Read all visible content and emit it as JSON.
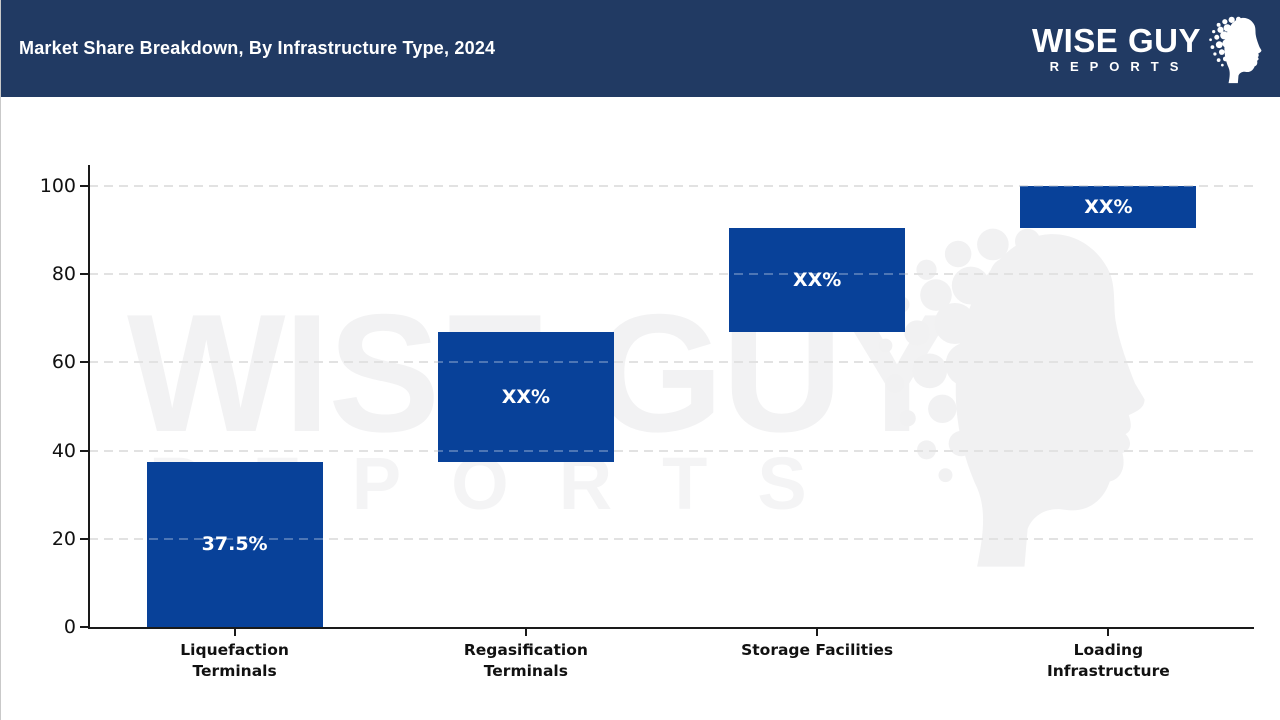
{
  "header": {
    "title": "Market Share Breakdown, By Infrastructure Type, 2024",
    "logo": {
      "name_line": "WISE GUY",
      "sub_line": "REPORTS"
    }
  },
  "watermark": {
    "name_line": "WISE GUY",
    "sub_line": "REPORTS"
  },
  "colors": {
    "header_bg": "#213a63",
    "bar": "#084199",
    "bar_label": "#ffffff",
    "axis": "#1a1a1a",
    "gridline": "#d7d7d7",
    "watermark": "#f2f2f3",
    "logo_white": "#ffffff"
  },
  "chart_data": {
    "type": "bar",
    "variant": "waterfall",
    "title": "Market Share Breakdown, By Infrastructure Type, 2024",
    "categories": [
      [
        "Liquefaction",
        "Terminals"
      ],
      [
        "Regasification",
        "Terminals"
      ],
      [
        "Storage Facilities"
      ],
      [
        "Loading",
        "Infrastructure"
      ]
    ],
    "segments": [
      {
        "category": "Liquefaction Terminals",
        "start": 0,
        "end": 37.5,
        "label": "37.5%"
      },
      {
        "category": "Regasification Terminals",
        "start": 37.5,
        "end": 67,
        "label": "XX%"
      },
      {
        "category": "Storage Facilities",
        "start": 67,
        "end": 90.5,
        "label": "XX%"
      },
      {
        "category": "Loading Infrastructure",
        "start": 90.5,
        "end": 100,
        "label": "XX%"
      }
    ],
    "xlabel": "",
    "ylabel": "",
    "ylim": [
      0,
      100
    ],
    "yticks": [
      0,
      20,
      40,
      60,
      80,
      100
    ],
    "grid": "horizontal-dashed",
    "legend": "none"
  }
}
